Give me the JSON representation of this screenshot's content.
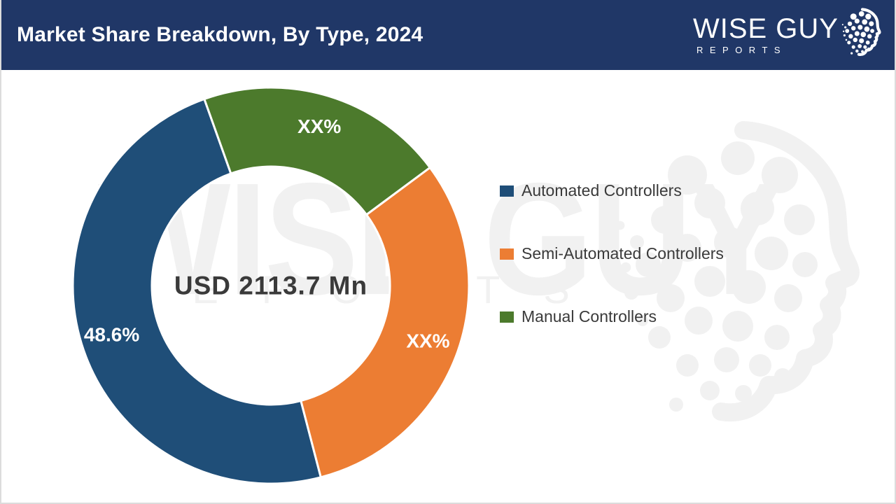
{
  "header": {
    "title": "Market Share Breakdown, By Type, 2024",
    "brand": {
      "name": "WISE GUY",
      "sub": "REPORTS"
    }
  },
  "watermark": {
    "name": "WISE GUY",
    "sub": "REPORTS"
  },
  "chart_data": {
    "type": "pie",
    "subtype": "donut",
    "title": "Market Share Breakdown, By Type, 2024",
    "center_label": "USD 2113.7 Mn",
    "total_market_value": "USD 2113.7 Mn",
    "year": "2024",
    "legend_position": "right",
    "segments": [
      {
        "name": "Automated Controllers",
        "pct": 48.6,
        "label": "48.6%",
        "color": "#1F4E78"
      },
      {
        "name": "Semi-Automated Controllers",
        "pct": 31.1,
        "label": "XX%",
        "color": "#EC7D33"
      },
      {
        "name": "Manual Controllers",
        "pct": 20.3,
        "label": "XX%",
        "color": "#4C7A2C"
      }
    ],
    "layout_hints": {
      "start_angle_deg_clockwise_from_top": 165.4,
      "clockwise_draw_order": [
        0,
        2,
        1
      ],
      "separator_color": "#FFFFFF",
      "pct_label_color": "#FFFFFF"
    }
  },
  "colors": {
    "header_bg": "#203767",
    "text_dark": "#3A3A3A",
    "watermark": "#F1F1F1",
    "page_border": "#DCDCDC"
  }
}
